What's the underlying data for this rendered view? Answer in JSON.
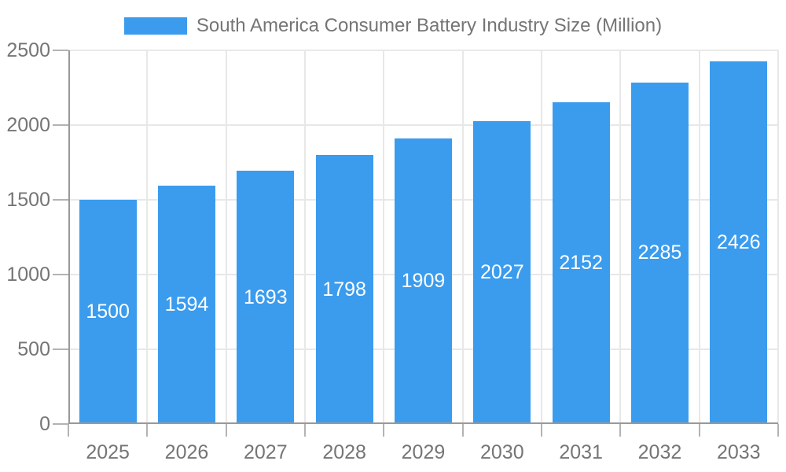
{
  "chart_data": {
    "type": "bar",
    "title": "South America Consumer Battery Industry Size (Million)",
    "legend": {
      "position": "top",
      "label": "South America Consumer Battery Industry Size (Million)"
    },
    "categories": [
      "2025",
      "2026",
      "2027",
      "2028",
      "2029",
      "2030",
      "2031",
      "2032",
      "2033"
    ],
    "series": [
      {
        "name": "South America Consumer Battery Industry Size (Million)",
        "values": [
          1500,
          1594,
          1693,
          1798,
          1909,
          2027,
          2152,
          2285,
          2426
        ]
      }
    ],
    "xlabel": "",
    "ylabel": "",
    "ylim": [
      0,
      2500
    ],
    "yticks": [
      0,
      500,
      1000,
      1500,
      2000,
      2500
    ],
    "grid": true,
    "value_labels": "inside-center",
    "colors": {
      "bar": "#3B9CEE",
      "bar_label_text": "#FFFFFF",
      "axis_text": "#757575",
      "gridline": "#E8E8E8",
      "axis_line": "#999999",
      "tick": "#B3B3B3",
      "background": "#FFFFFF"
    }
  }
}
